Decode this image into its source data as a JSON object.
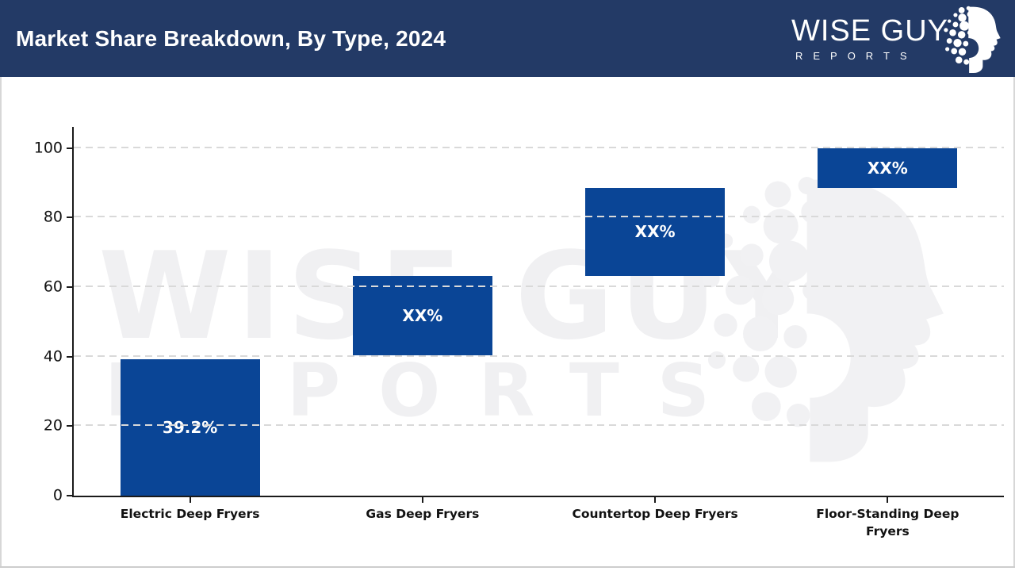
{
  "header": {
    "title": "Market Share Breakdown, By Type, 2024",
    "logo": {
      "line1": "WISE GUY",
      "line2": "REPORTS"
    }
  },
  "watermark": {
    "line1": "WISE GUY",
    "line2": "REPORTS"
  },
  "colors": {
    "header_bg": "#233a66",
    "bar": "#0a4596",
    "axis": "#1a1a1a",
    "grid": "#d9d9d9",
    "bar_label": "#ffffff",
    "watermark": "#f0f0f2"
  },
  "chart_data": {
    "type": "bar",
    "subtype": "waterfall",
    "title": "Market Share Breakdown, By Type, 2024",
    "categories": [
      "Electric Deep Fryers",
      "Gas Deep Fryers",
      "Countertop Deep Fryers",
      "Floor-Standing Deep Fryers"
    ],
    "bars": [
      {
        "category": "Electric Deep Fryers",
        "label": "39.2%",
        "start": 0,
        "end": 39.2
      },
      {
        "category": "Gas Deep Fryers",
        "label": "XX%",
        "start": 40.3,
        "end": 63.2
      },
      {
        "category": "Countertop Deep Fryers",
        "label": "XX%",
        "start": 63.2,
        "end": 88.6
      },
      {
        "category": "Floor-Standing Deep Fryers",
        "label": "XX%",
        "start": 88.6,
        "end": 100
      }
    ],
    "ylabel": "",
    "xlabel": "",
    "yticks": [
      0,
      20,
      40,
      60,
      80,
      100
    ],
    "ylim": [
      0,
      106.1
    ],
    "grid": "horizontal-dashed",
    "legend": false
  }
}
